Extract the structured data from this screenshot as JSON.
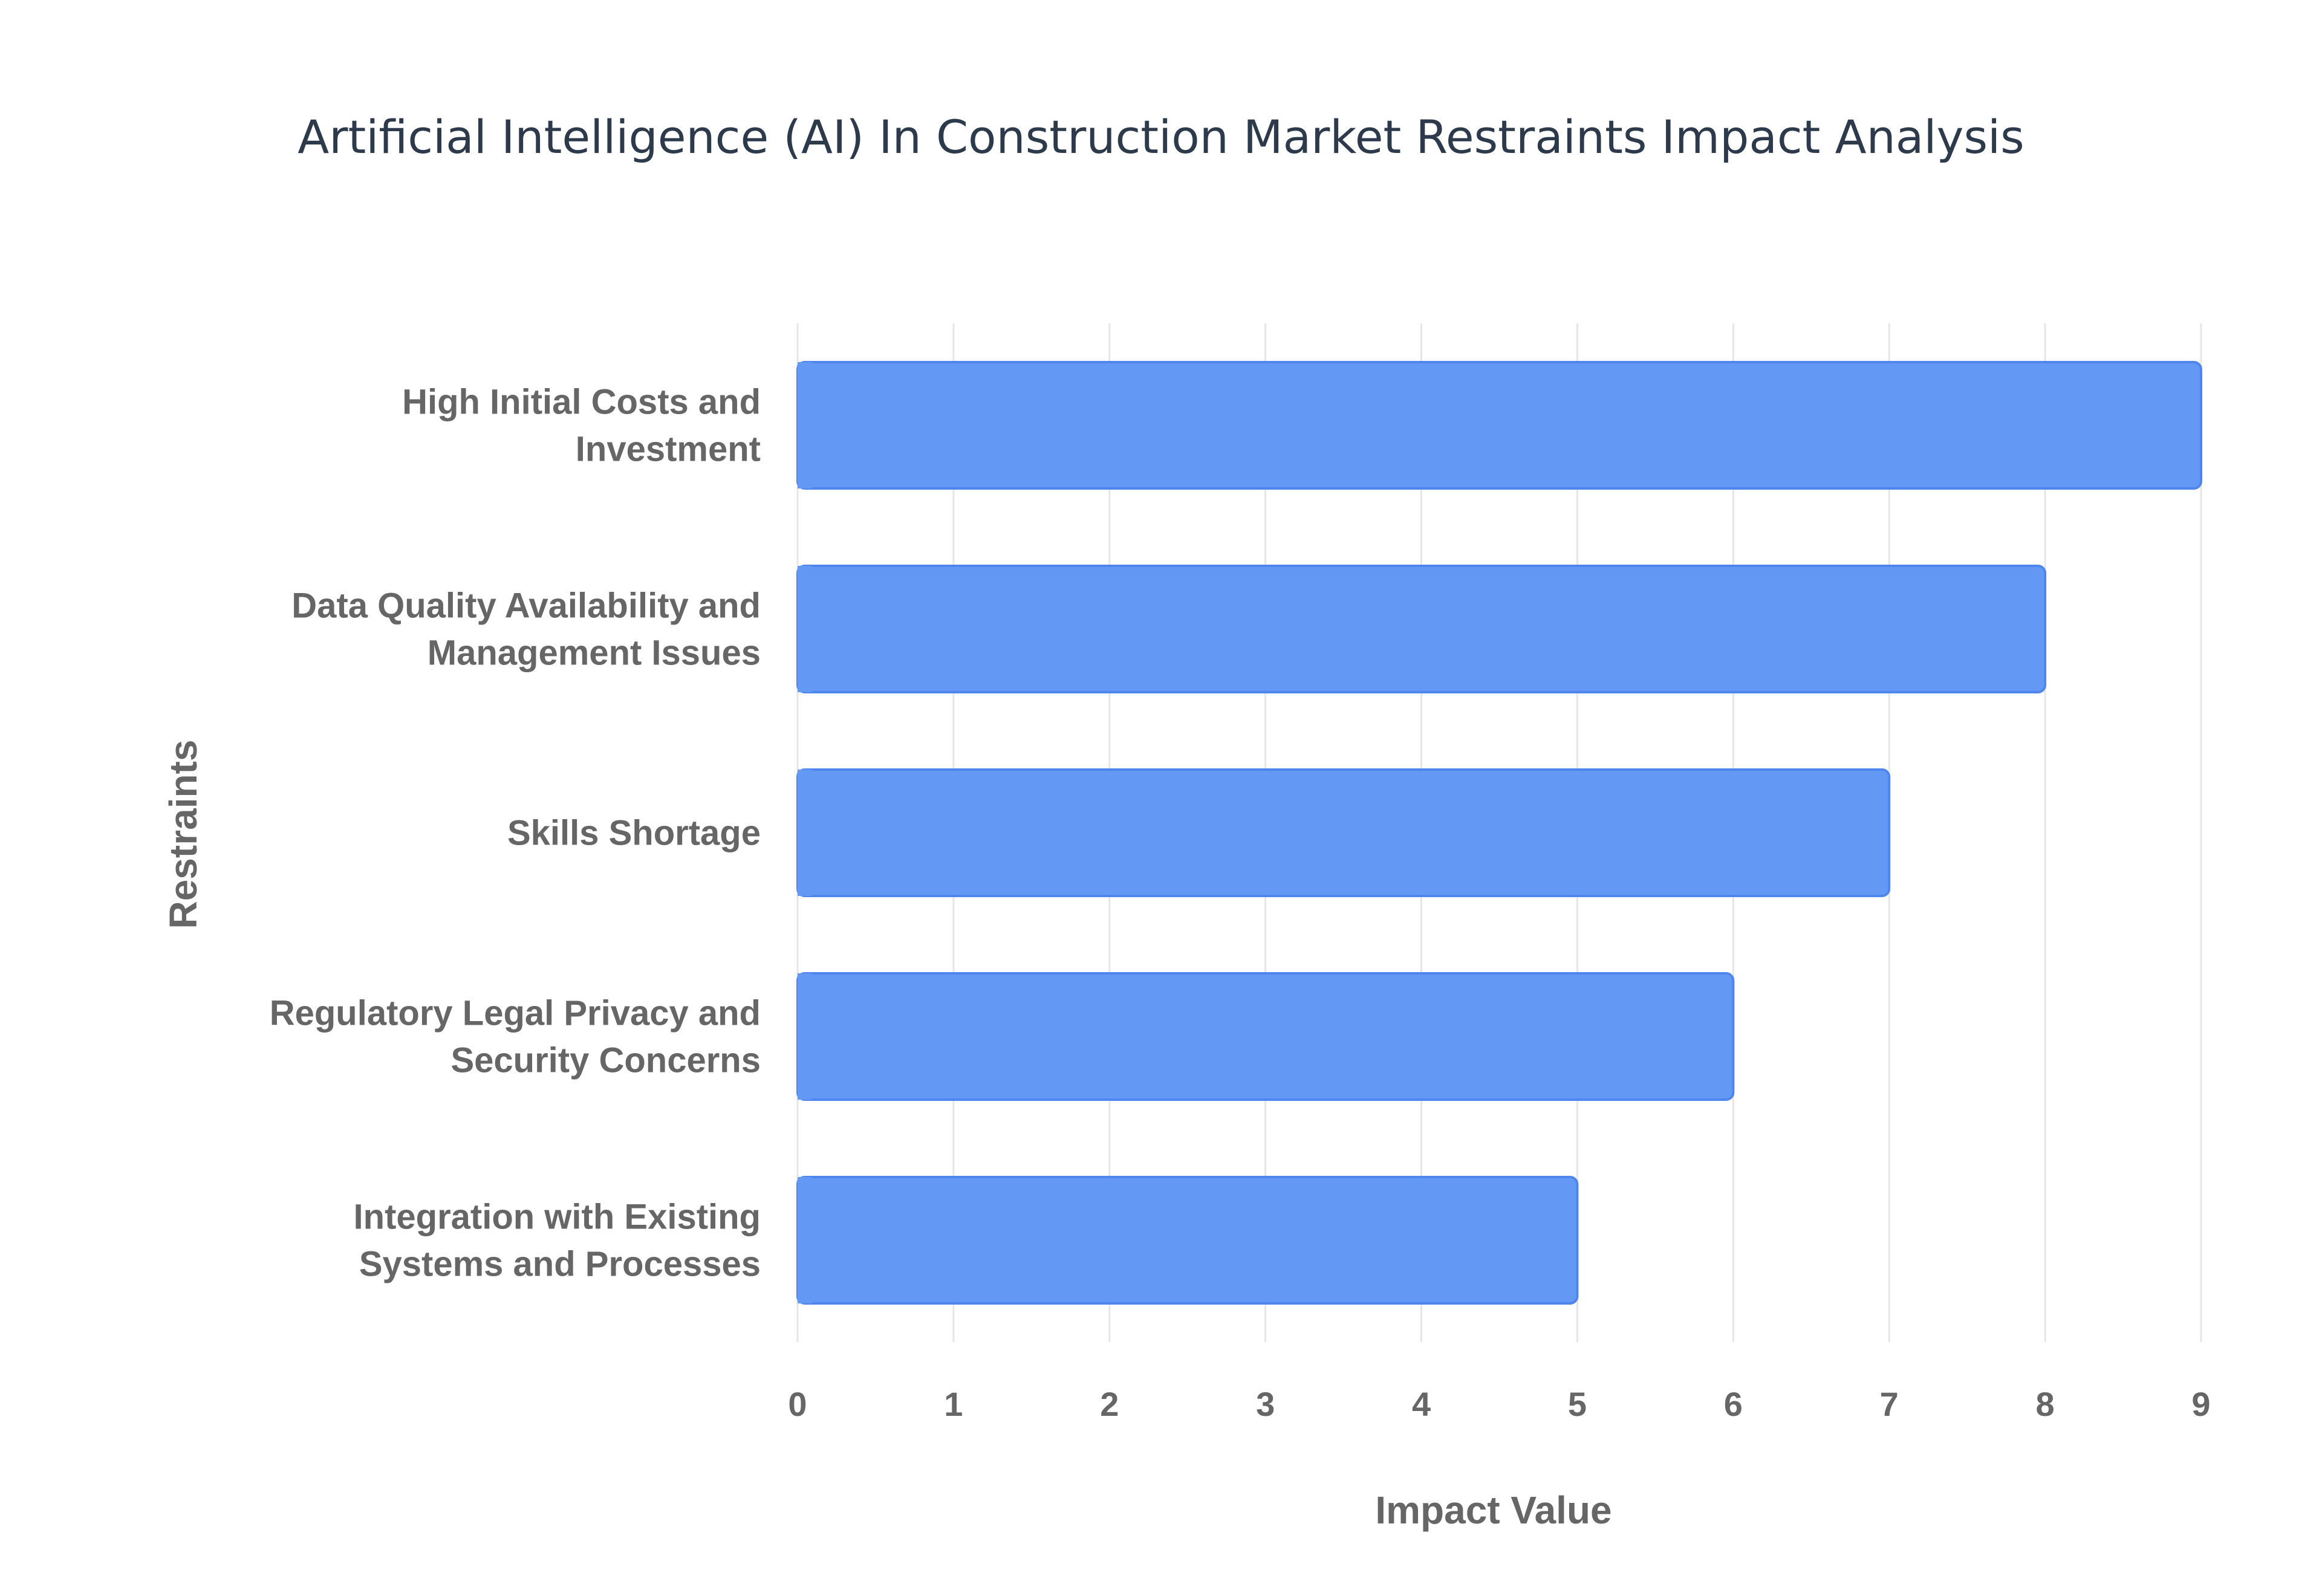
{
  "chart_data": {
    "type": "bar",
    "orientation": "horizontal",
    "title": "Artificial Intelligence (AI) In Construction Market Restraints Impact Analysis",
    "xlabel": "Impact Value",
    "ylabel": "Restraints",
    "xlim": [
      0,
      9
    ],
    "xticks": [
      "0",
      "1",
      "2",
      "3",
      "4",
      "5",
      "6",
      "7",
      "8",
      "9"
    ],
    "grid": true,
    "legend": "none",
    "categories": [
      [
        "High Initial Costs and",
        "Investment"
      ],
      [
        "Data Quality Availability and",
        "Management Issues"
      ],
      [
        "Skills Shortage"
      ],
      [
        "Regulatory Legal Privacy and",
        "Security Concerns"
      ],
      [
        "Integration with Existing",
        "Systems and Processes"
      ]
    ],
    "values": [
      9,
      8,
      7,
      6,
      5
    ],
    "colors": {
      "bar_fill": "#6399f5",
      "bar_stroke": "#4f86ee",
      "grid": "#e6e6e6",
      "title": "#2d3a4b",
      "text": "#666666"
    }
  }
}
